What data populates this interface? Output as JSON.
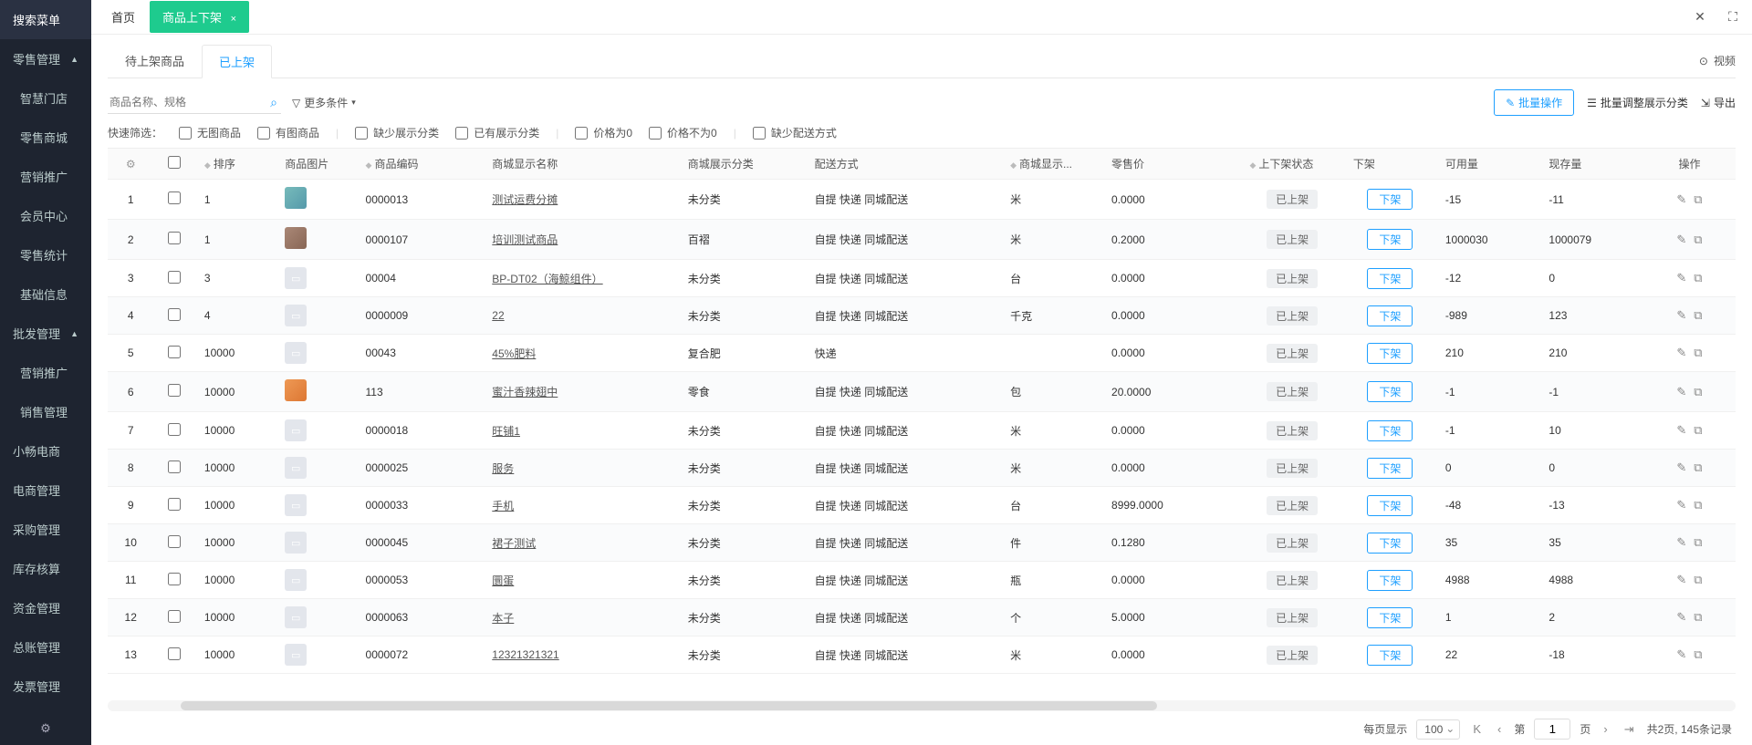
{
  "sidebar": {
    "items": [
      {
        "label": "搜索菜单",
        "type": "item"
      },
      {
        "label": "零售管理",
        "type": "group",
        "open": true
      },
      {
        "label": "智慧门店",
        "type": "sub"
      },
      {
        "label": "零售商城",
        "type": "sub"
      },
      {
        "label": "营销推广",
        "type": "sub"
      },
      {
        "label": "会员中心",
        "type": "sub"
      },
      {
        "label": "零售统计",
        "type": "sub"
      },
      {
        "label": "基础信息",
        "type": "sub"
      },
      {
        "label": "批发管理",
        "type": "group",
        "open": true
      },
      {
        "label": "营销推广",
        "type": "sub"
      },
      {
        "label": "销售管理",
        "type": "sub"
      },
      {
        "label": "小畅电商",
        "type": "item"
      },
      {
        "label": "电商管理",
        "type": "item"
      },
      {
        "label": "采购管理",
        "type": "item"
      },
      {
        "label": "库存核算",
        "type": "item"
      },
      {
        "label": "资金管理",
        "type": "item"
      },
      {
        "label": "总账管理",
        "type": "item"
      },
      {
        "label": "发票管理",
        "type": "item"
      }
    ]
  },
  "tabs": {
    "home": "首页",
    "active": "商品上下架"
  },
  "subtabs": {
    "pending": "待上架商品",
    "listed": "已上架",
    "video": "视频"
  },
  "toolbar": {
    "search_placeholder": "商品名称、规格",
    "more": "更多条件",
    "batch_op": "批量操作",
    "batch_adjust": "批量调整展示分类",
    "export": "导出"
  },
  "quickfilter": {
    "label": "快速筛选：",
    "no_img": "无图商品",
    "has_img": "有图商品",
    "no_cat": "缺少展示分类",
    "has_cat": "已有展示分类",
    "price_zero": "价格为0",
    "price_nonzero": "价格不为0",
    "no_ship": "缺少配送方式"
  },
  "columns": {
    "sort": "排序",
    "img": "商品图片",
    "code": "商品编码",
    "name": "商城显示名称",
    "cat": "商城展示分类",
    "ship": "配送方式",
    "unit": "商城显示...",
    "price": "零售价",
    "status": "上下架状态",
    "off": "下架",
    "avail": "可用量",
    "stock": "现存量",
    "op": "操作"
  },
  "status_label": "已上架",
  "off_label": "下架",
  "rows": [
    {
      "idx": "1",
      "sort": "1",
      "img": "food1",
      "code": "0000013",
      "name": "测试运费分摊",
      "cat": "未分类",
      "ship": "自提 快递 同城配送",
      "unit": "米",
      "price": "0.0000",
      "avail": "-15",
      "stock": "-11"
    },
    {
      "idx": "2",
      "sort": "1",
      "img": "food2",
      "code": "0000107",
      "name": "培训测试商品",
      "cat": "百褶",
      "ship": "自提 快递 同城配送",
      "unit": "米",
      "price": "0.2000",
      "avail": "1000030",
      "stock": "1000079"
    },
    {
      "idx": "3",
      "sort": "3",
      "img": "",
      "code": "00004",
      "name": "BP-DT02（海鲸组件）",
      "cat": "未分类",
      "ship": "自提 快递 同城配送",
      "unit": "台",
      "price": "0.0000",
      "avail": "-12",
      "stock": "0"
    },
    {
      "idx": "4",
      "sort": "4",
      "img": "",
      "code": "0000009",
      "name": "22",
      "cat": "未分类",
      "ship": "自提 快递 同城配送",
      "unit": "千克",
      "price": "0.0000",
      "avail": "-989",
      "stock": "123"
    },
    {
      "idx": "5",
      "sort": "10000",
      "img": "",
      "code": "00043",
      "name": "45%肥料",
      "cat": "复合肥",
      "ship": "快递",
      "unit": "",
      "price": "0.0000",
      "avail": "210",
      "stock": "210"
    },
    {
      "idx": "6",
      "sort": "10000",
      "img": "food3",
      "code": "113",
      "name": "蜜汁香辣翅中",
      "cat": "零食",
      "ship": "自提 快递 同城配送",
      "unit": "包",
      "price": "20.0000",
      "avail": "-1",
      "stock": "-1"
    },
    {
      "idx": "7",
      "sort": "10000",
      "img": "",
      "code": "0000018",
      "name": "旺铺1",
      "cat": "未分类",
      "ship": "自提 快递 同城配送",
      "unit": "米",
      "price": "0.0000",
      "avail": "-1",
      "stock": "10"
    },
    {
      "idx": "8",
      "sort": "10000",
      "img": "",
      "code": "0000025",
      "name": "服务",
      "cat": "未分类",
      "ship": "自提 快递 同城配送",
      "unit": "米",
      "price": "0.0000",
      "avail": "0",
      "stock": "0"
    },
    {
      "idx": "9",
      "sort": "10000",
      "img": "",
      "code": "0000033",
      "name": "手机",
      "cat": "未分类",
      "ship": "自提 快递 同城配送",
      "unit": "台",
      "price": "8999.0000",
      "avail": "-48",
      "stock": "-13"
    },
    {
      "idx": "10",
      "sort": "10000",
      "img": "",
      "code": "0000045",
      "name": "裙子测试",
      "cat": "未分类",
      "ship": "自提 快递 同城配送",
      "unit": "件",
      "price": "0.1280",
      "avail": "35",
      "stock": "35"
    },
    {
      "idx": "11",
      "sort": "10000",
      "img": "",
      "code": "0000053",
      "name": "圜蛋",
      "cat": "未分类",
      "ship": "自提 快递 同城配送",
      "unit": "瓶",
      "price": "0.0000",
      "avail": "4988",
      "stock": "4988"
    },
    {
      "idx": "12",
      "sort": "10000",
      "img": "",
      "code": "0000063",
      "name": "本子",
      "cat": "未分类",
      "ship": "自提 快递 同城配送",
      "unit": "个",
      "price": "5.0000",
      "avail": "1",
      "stock": "2"
    },
    {
      "idx": "13",
      "sort": "10000",
      "img": "",
      "code": "0000072",
      "name": "12321321321",
      "cat": "未分类",
      "ship": "自提 快递 同城配送",
      "unit": "米",
      "price": "0.0000",
      "avail": "22",
      "stock": "-18"
    }
  ],
  "pager": {
    "per_page_label": "每页显示",
    "per_page": "100",
    "page_prefix": "第",
    "page": "1",
    "page_suffix": "页",
    "summary": "共2页, 145条记录"
  }
}
